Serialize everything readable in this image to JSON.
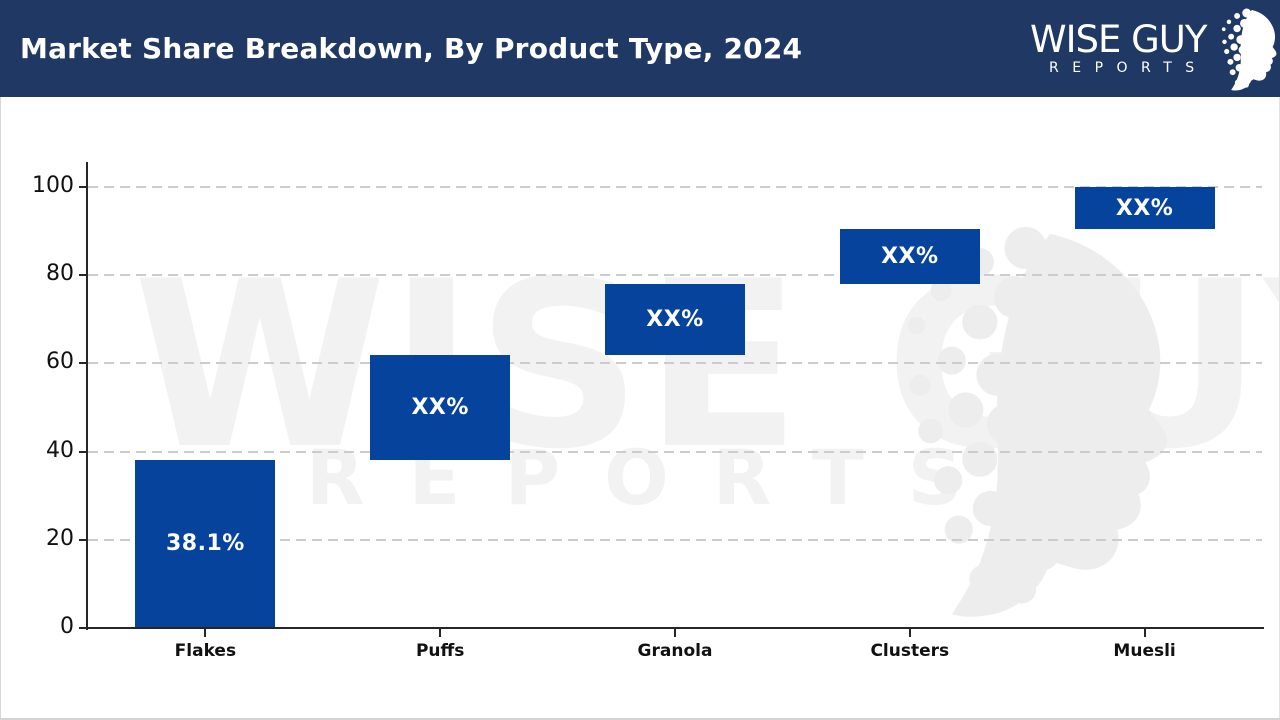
{
  "header": {
    "title": "Market Share Breakdown, By Product Type, 2024"
  },
  "logo": {
    "name_line": "WISE GUY",
    "sub_line": "REPORTS"
  },
  "watermark": {
    "line1": "WISE GUY",
    "line2": "REPORTS"
  },
  "colors": {
    "header_bg": "#1f3864",
    "bar_blue": "#05439c",
    "grid": "#cccccc",
    "axis": "#262626",
    "bar_label": "#ffffff"
  },
  "chart_data": {
    "type": "bar",
    "subtype": "floating-waterfall",
    "title": "Market Share Breakdown, By Product Type, 2024",
    "categories": [
      "Flakes",
      "Puffs",
      "Granola",
      "Clusters",
      "Muesli"
    ],
    "series": [
      {
        "name": "Market share (%)",
        "segments": [
          {
            "category": "Flakes",
            "start": 0,
            "end": 38.1,
            "label": "38.1%"
          },
          {
            "category": "Puffs",
            "start": 38.1,
            "end": 61.9,
            "label": "XX%"
          },
          {
            "category": "Granola",
            "start": 61.9,
            "end": 78.1,
            "label": "XX%"
          },
          {
            "category": "Clusters",
            "start": 78.1,
            "end": 90.4,
            "label": "XX%"
          },
          {
            "category": "Muesli",
            "start": 90.4,
            "end": 100,
            "label": "XX%"
          }
        ]
      }
    ],
    "xlabel": "",
    "ylabel": "",
    "ylim": [
      0,
      105.7
    ],
    "yticks": [
      0,
      20,
      40,
      60,
      80,
      100
    ],
    "grid": true,
    "grid_style": "dashed",
    "legend": false,
    "bar_color": "#05439c",
    "value_label_color": "#ffffff"
  }
}
